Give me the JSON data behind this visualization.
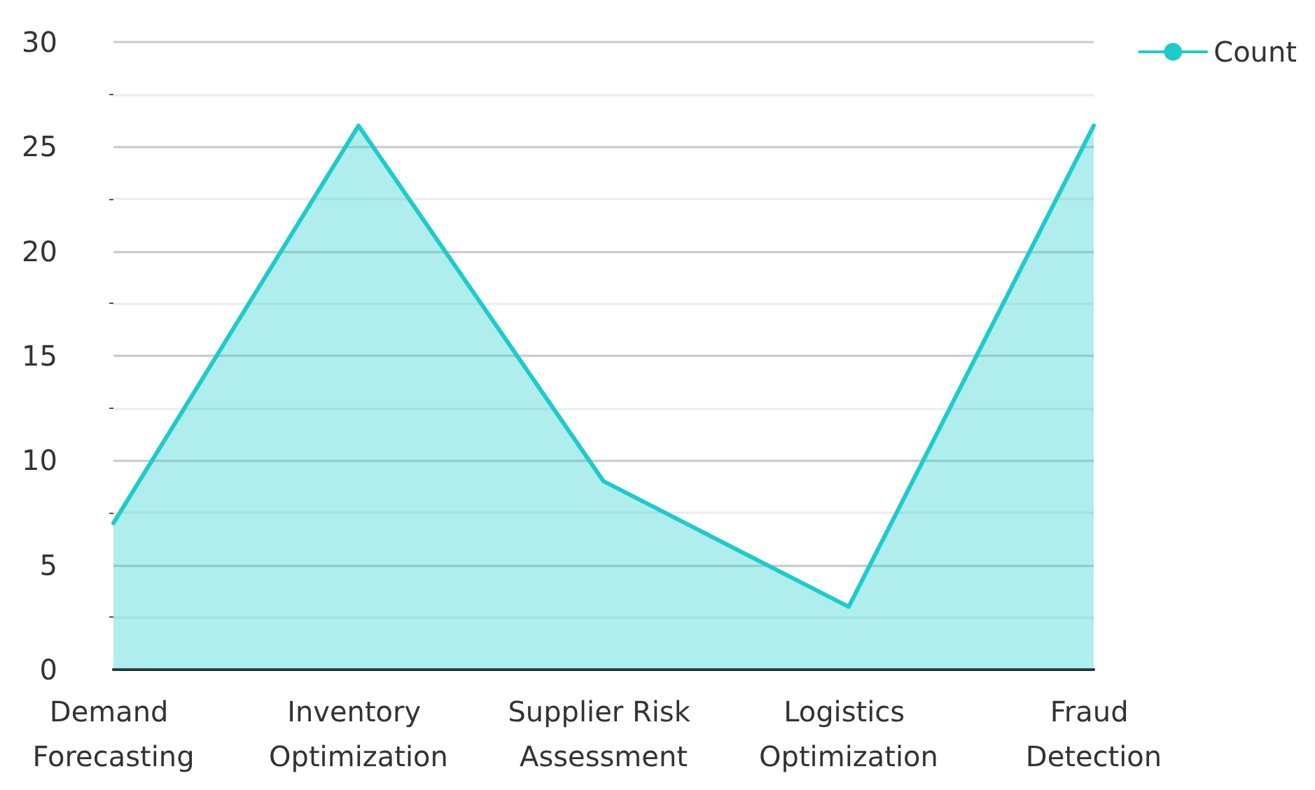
{
  "chart_data": {
    "type": "area",
    "categories": [
      "Demand Forecasting",
      "Inventory Optimization",
      "Supplier Risk Assessment",
      "Logistics Optimization",
      "Fraud Detection"
    ],
    "series": [
      {
        "name": "Count",
        "color": "#1ecbcb",
        "values": [
          7,
          26,
          9,
          3,
          26
        ]
      }
    ],
    "ylim": [
      0,
      30
    ],
    "yticks": [
      0,
      5,
      10,
      15,
      20,
      25,
      30
    ],
    "grid": "y",
    "legend": "top right",
    "marker": "none",
    "line_style": "solid"
  }
}
